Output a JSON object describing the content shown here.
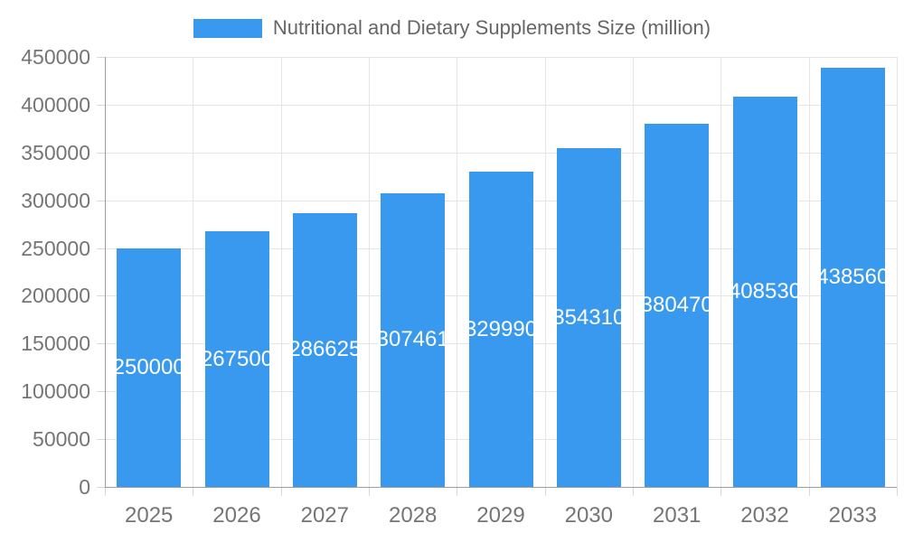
{
  "chart_data": {
    "type": "bar",
    "series_name": "Nutritional and Dietary Supplements Size (million)",
    "categories": [
      "2025",
      "2026",
      "2027",
      "2028",
      "2029",
      "2030",
      "2031",
      "2032",
      "2033"
    ],
    "values": [
      250000,
      267500,
      286625,
      307461,
      329990,
      354310,
      380470,
      408530,
      438560
    ],
    "value_labels": [
      "250000",
      "267500",
      "286625",
      "307461",
      "329990",
      "354310",
      "380470",
      "408530",
      "438560"
    ],
    "ylim": [
      0,
      450000
    ],
    "yticks": [
      0,
      50000,
      100000,
      150000,
      200000,
      250000,
      300000,
      350000,
      400000,
      450000
    ],
    "ytick_labels": [
      "0",
      "50000",
      "100000",
      "150000",
      "200000",
      "250000",
      "300000",
      "350000",
      "400000",
      "450000"
    ],
    "xlabel": "",
    "ylabel": "",
    "grid": true,
    "legend_position": "top",
    "bar_color": "#3899ee",
    "value_label_color": "#ffffff",
    "axis_line_color": "#9e9e9e",
    "gridline_color": "#e5e5e5",
    "tick_color": "#d8d8d8",
    "axis_text_color": "#757575",
    "legend_text_color": "#666666"
  }
}
